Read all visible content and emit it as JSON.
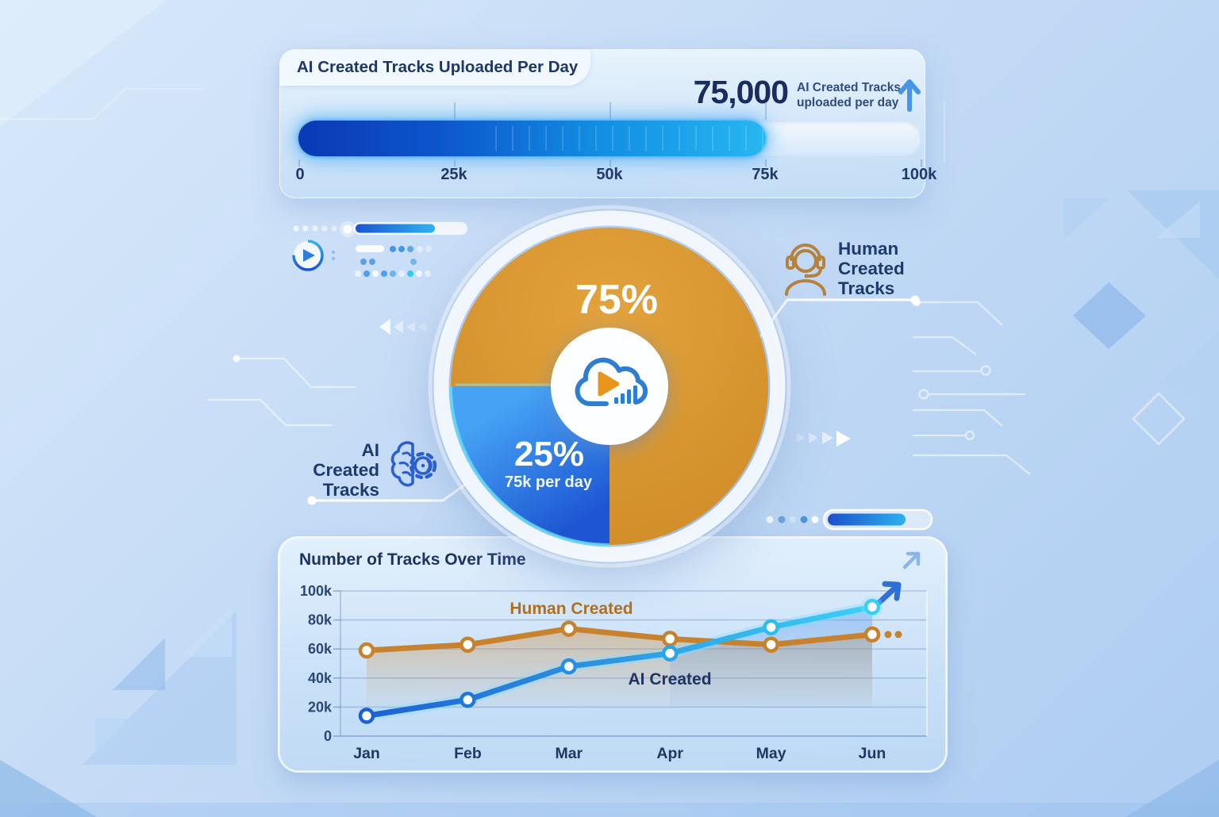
{
  "colors": {
    "background": "#c6dcf6",
    "navy": "#1d3766",
    "orange": "#d79330",
    "blue": "#2b72e4",
    "cyan": "#35c9f2",
    "progress_start": "#0a39b4",
    "progress_end": "#27b7f2"
  },
  "top_card": {
    "title": "AI Created Tracks Uploaded Per Day",
    "stat_value": "75,000",
    "stat_label_line1": "AI Created Tracks",
    "stat_label_line2": "uploaded per day",
    "trend_icon": "arrow-up",
    "progress_pct": 75,
    "scale_labels": [
      "0",
      "25k",
      "50k",
      "75k",
      "100k"
    ]
  },
  "pie": {
    "value_75": "75%",
    "value_25": "25%",
    "sub_25": "75k per day",
    "center_icon": "cloud-play",
    "human_label_lines": [
      "Human",
      "Created",
      "Tracks"
    ],
    "ai_label_lines": [
      "AI",
      "Created",
      "Tracks"
    ],
    "segments": [
      {
        "label": "Human Created Tracks",
        "pct": 75,
        "color": "#d79330",
        "color_light": "#e2a23c",
        "color_dark": "#cd8a26",
        "icon": "headset-person"
      },
      {
        "label": "AI Created Tracks",
        "pct": 25,
        "color": "#2b72e4",
        "color_light": "#45a2f4",
        "color_dark": "#1d55d2",
        "sublabel": "75k per day",
        "icon": "brain-gear"
      }
    ]
  },
  "bottom_card": {
    "title": "Number of Tracks Over Time",
    "expand_icon": "arrow-up-right"
  },
  "chart_data": [
    {
      "type": "bar",
      "title": "AI Created Tracks Uploaded Per Day",
      "categories": [
        "AI Created Tracks uploaded per day"
      ],
      "values": [
        75000
      ],
      "xlim": [
        0,
        100000
      ],
      "x_tick_labels": [
        "0",
        "25k",
        "50k",
        "75k",
        "100k"
      ],
      "annotation": "75,000"
    },
    {
      "type": "pie",
      "labels": [
        "Human Created Tracks",
        "AI Created Tracks"
      ],
      "values": [
        75,
        25
      ],
      "colors": [
        "#d79330",
        "#2b72e4"
      ],
      "annotations": [
        "75%",
        "25% (75k per day)"
      ]
    },
    {
      "type": "line",
      "title": "Number of Tracks Over Time",
      "x": [
        "Jan",
        "Feb",
        "Mar",
        "Apr",
        "May",
        "Jun"
      ],
      "y_ticks": [
        "100k",
        "80k",
        "60k",
        "40k",
        "20k",
        "0"
      ],
      "y_tick_values": [
        100000,
        80000,
        60000,
        40000,
        20000,
        0
      ],
      "ylim": [
        0,
        100000
      ],
      "grid": true,
      "legend": "inline-labels",
      "series": [
        {
          "name": "Human Created",
          "color": "#c8822e",
          "label_color": "#b06f1e",
          "point_colors": [
            "#c8822e",
            "#c8822e",
            "#c8822e",
            "#c8822e",
            "#c8822e",
            "#c8822e"
          ],
          "values": [
            59000,
            63000,
            74000,
            67000,
            63000,
            70000
          ]
        },
        {
          "name": "AI Created",
          "color_start": "#1c60d4",
          "color_end": "#3bd2f6",
          "label_color": "#1f3560",
          "point_colors": [
            "#1c60d4",
            "#1f78dc",
            "#2390e2",
            "#27a6ea",
            "#2cbcf0",
            "#36d0f6"
          ],
          "values": [
            14000,
            25000,
            48000,
            57000,
            75000,
            89000
          ]
        }
      ]
    }
  ]
}
